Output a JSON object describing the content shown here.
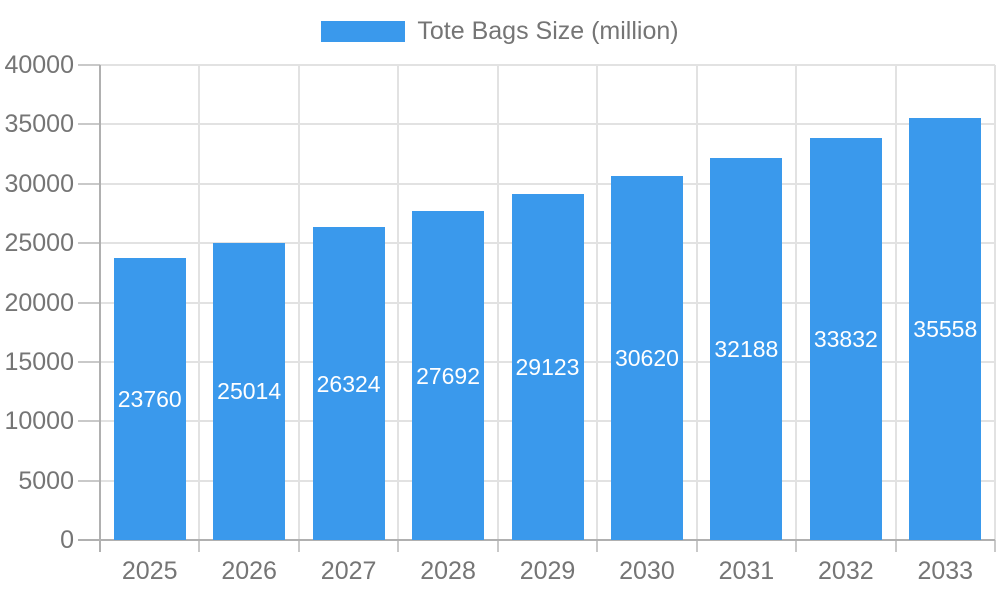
{
  "chart_data": {
    "type": "bar",
    "title": "",
    "legend_label": "Tote Bags Size (million)",
    "legend_position": "top",
    "categories": [
      "2025",
      "2026",
      "2027",
      "2028",
      "2029",
      "2030",
      "2031",
      "2032",
      "2033"
    ],
    "series": [
      {
        "name": "Tote Bags Size (million)",
        "values": [
          23760,
          25014,
          26324,
          27692,
          29123,
          30620,
          32188,
          33832,
          35558
        ]
      }
    ],
    "xlabel": "",
    "ylabel": "",
    "ylim": [
      0,
      40000
    ],
    "ytick_step": 5000,
    "yticks": [
      0,
      5000,
      10000,
      15000,
      20000,
      25000,
      30000,
      35000,
      40000
    ],
    "grid": "both",
    "value_labels": "inside-center",
    "colors": {
      "bar": "#3a99ec",
      "axis_text": "#757575",
      "grid_line": "#e2e2e2",
      "axis_line": "#b0b0b0",
      "tick_line": "#c9c9c9",
      "value_label_text": "#ffffff",
      "background": "#ffffff"
    }
  }
}
